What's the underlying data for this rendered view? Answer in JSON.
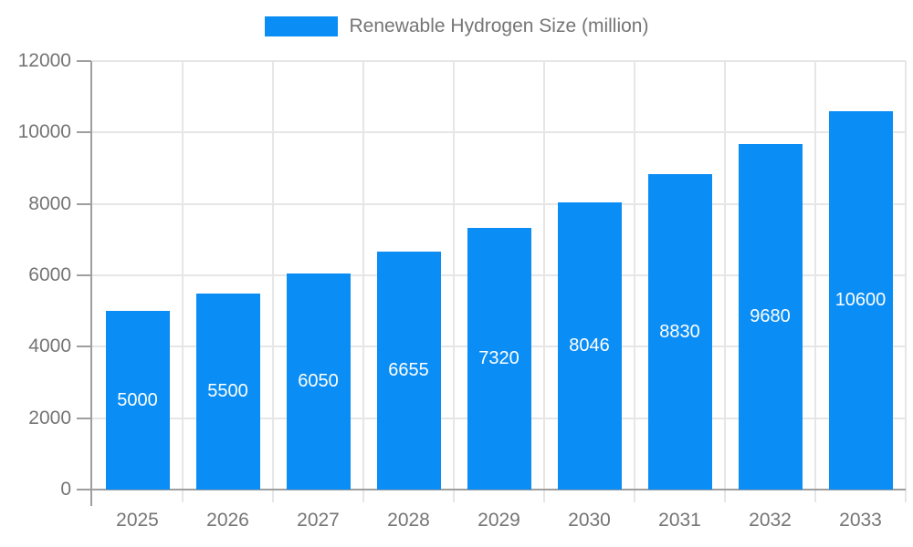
{
  "legend": {
    "label": "Renewable Hydrogen Size (million)"
  },
  "colors": {
    "bar": "#0a8df5",
    "axis": "#9e9e9e",
    "grid": "#e6e6e6",
    "text": "#757575",
    "bar_label": "#ffffff",
    "background": "#ffffff"
  },
  "chart_data": {
    "type": "bar",
    "title": "",
    "xlabel": "",
    "ylabel": "",
    "categories": [
      "2025",
      "2026",
      "2027",
      "2028",
      "2029",
      "2030",
      "2031",
      "2032",
      "2033"
    ],
    "series": [
      {
        "name": "Renewable Hydrogen Size (million)",
        "values": [
          5000,
          5500,
          6050,
          6655,
          7320,
          8046,
          8830,
          9680,
          10600
        ]
      }
    ],
    "ylim": [
      0,
      12000
    ],
    "yticks": [
      0,
      2000,
      4000,
      6000,
      8000,
      10000,
      12000
    ],
    "grid": true,
    "legend_position": "top-center",
    "bar_label_position": "inside-middle"
  }
}
